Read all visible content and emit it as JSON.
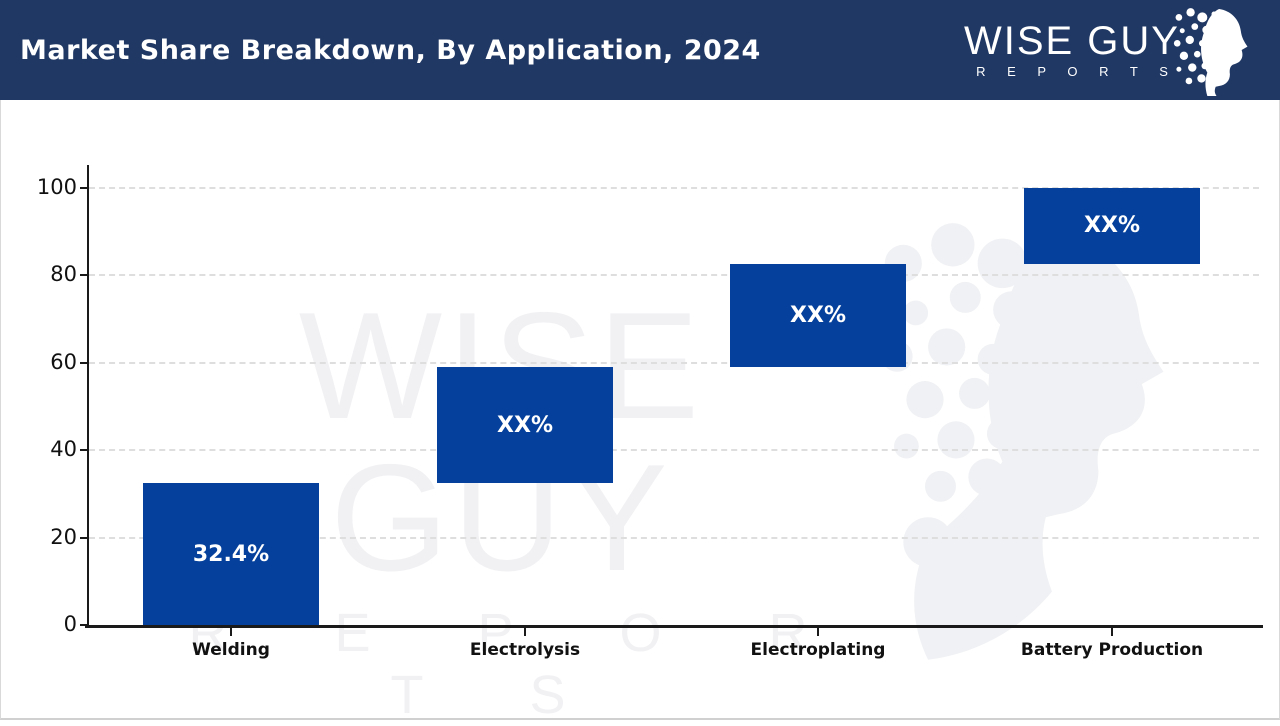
{
  "header": {
    "title": "Market Share Breakdown, By Application, 2024",
    "background_color": "#203864",
    "logo": {
      "line1": "WISE GUY",
      "line2": "R E P O R T S",
      "face_icon": "dotted-head-profile"
    }
  },
  "watermark": {
    "line1": "WISE GUY",
    "line2": "R E P O R T S",
    "face_icon": "dotted-head-profile"
  },
  "chart_data": {
    "type": "bar",
    "variant": "waterfall",
    "title": "Market Share Breakdown, By Application, 2024",
    "categories": [
      "Welding",
      "Electrolysis",
      "Electroplating",
      "Battery Production"
    ],
    "segments": [
      {
        "category": "Welding",
        "start": 0,
        "end": 32.4,
        "label": "32.4%"
      },
      {
        "category": "Electrolysis",
        "start": 32.4,
        "end": 59,
        "label": "XX%"
      },
      {
        "category": "Electroplating",
        "start": 59,
        "end": 82.5,
        "label": "XX%"
      },
      {
        "category": "Battery Production",
        "start": 82.5,
        "end": 100,
        "label": "XX%"
      }
    ],
    "yticks": [
      0,
      20,
      40,
      60,
      80,
      100
    ],
    "ylim": [
      0,
      105
    ],
    "xlabel": "",
    "ylabel": "",
    "grid": "horizontal dashed",
    "legend": null,
    "bar_color": "#04409c",
    "bar_label_color": "#ffffff",
    "axis_color": "#1a1a1a"
  }
}
